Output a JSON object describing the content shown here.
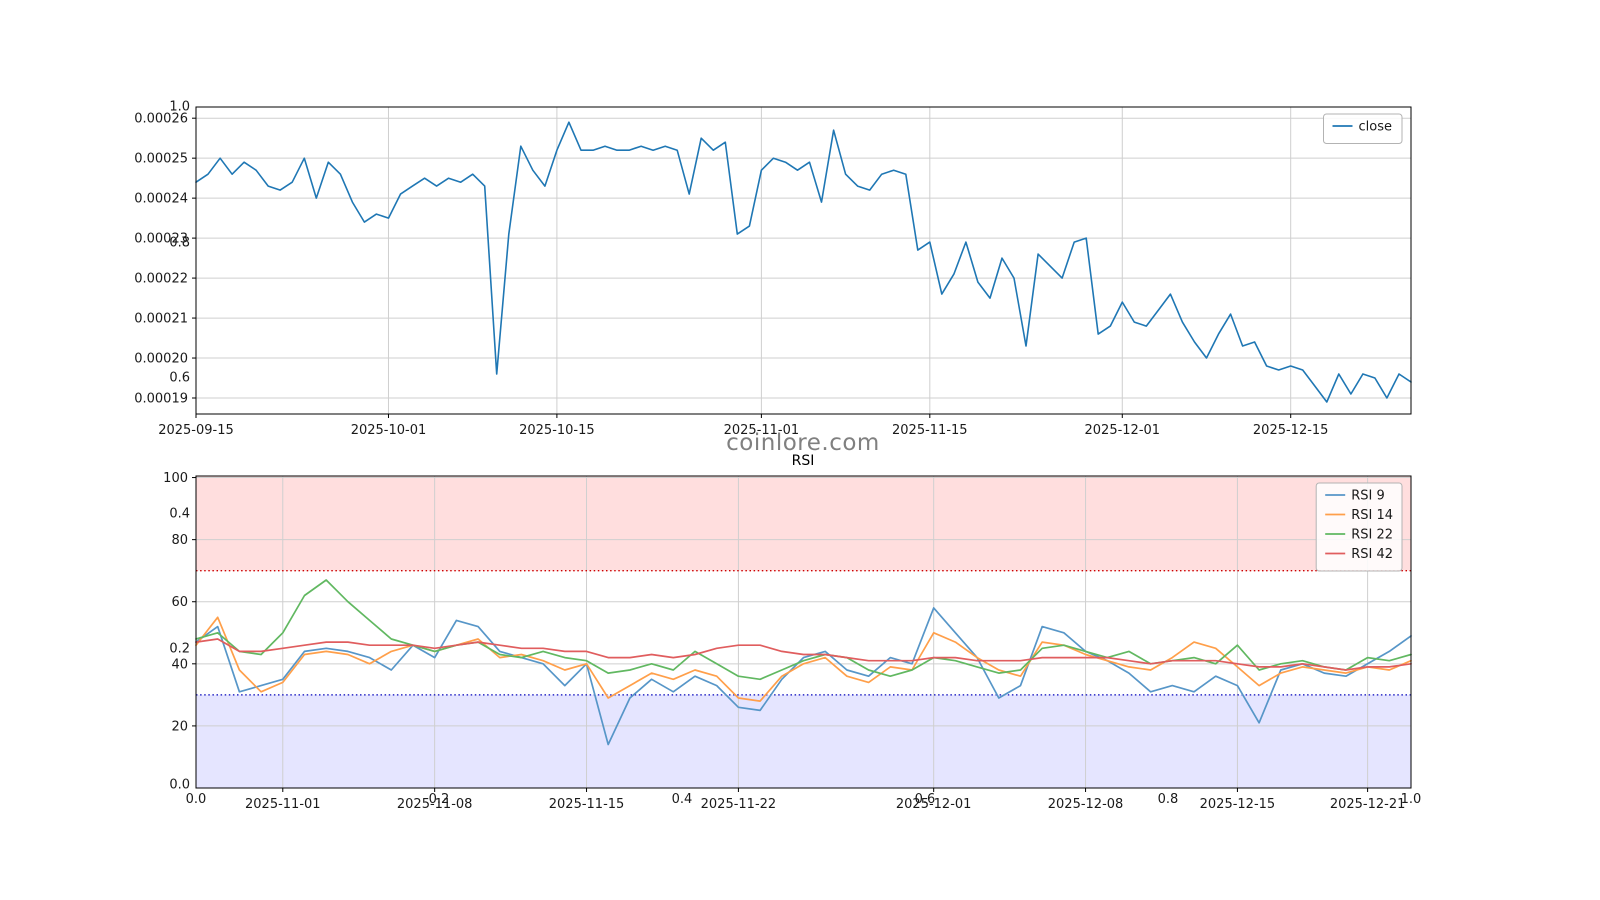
{
  "watermark": "coinlore.com",
  "overlay_axis": {
    "y_labels": [
      "1.0",
      "0.8",
      "0.6",
      "0.4",
      "0.2",
      "0.0"
    ],
    "x_labels": [
      "0.0",
      "0.2",
      "0.4",
      "0.6",
      "0.8",
      "1.0"
    ]
  },
  "chart_data": [
    {
      "type": "line",
      "name": "price-close-chart",
      "title": "",
      "legend_position": "upper right",
      "grid": true,
      "start_date": "2025-09-15",
      "x_tick_labels": [
        "2025-09-15",
        "2025-10-01",
        "2025-10-15",
        "2025-11-01",
        "2025-11-15",
        "2025-12-01",
        "2025-12-15"
      ],
      "y_tick_values": [
        0.00019,
        0.0002,
        0.00021,
        0.00022,
        0.00023,
        0.00024,
        0.00025,
        0.00026
      ],
      "y_tick_labels": [
        "0.00019",
        "0.00020",
        "0.00021",
        "0.00022",
        "0.00023",
        "0.00024",
        "0.00025",
        "0.00026"
      ],
      "ylim": [
        0.000186,
        0.0002628
      ],
      "series": [
        {
          "name": "close",
          "color": "#1f77b4",
          "width": 1.6,
          "values": [
            0.000244,
            0.000246,
            0.00025,
            0.000246,
            0.000249,
            0.000247,
            0.000243,
            0.000242,
            0.000244,
            0.00025,
            0.00024,
            0.000249,
            0.000246,
            0.000239,
            0.000234,
            0.000236,
            0.000235,
            0.000241,
            0.000243,
            0.000245,
            0.000243,
            0.000245,
            0.000244,
            0.000246,
            0.000243,
            0.000196,
            0.000231,
            0.000253,
            0.000247,
            0.000243,
            0.000252,
            0.000259,
            0.000252,
            0.000252,
            0.000253,
            0.000252,
            0.000252,
            0.000253,
            0.000252,
            0.000253,
            0.000252,
            0.000241,
            0.000255,
            0.000252,
            0.000254,
            0.000231,
            0.000233,
            0.000247,
            0.00025,
            0.000249,
            0.000247,
            0.000249,
            0.000239,
            0.000257,
            0.000246,
            0.000243,
            0.000242,
            0.000246,
            0.000247,
            0.000246,
            0.000227,
            0.000229,
            0.000216,
            0.000221,
            0.000229,
            0.000219,
            0.000215,
            0.000225,
            0.00022,
            0.000203,
            0.000226,
            0.000223,
            0.00022,
            0.000229,
            0.00023,
            0.000206,
            0.000208,
            0.000214,
            0.000209,
            0.000208,
            0.000212,
            0.000216,
            0.000209,
            0.000204,
            0.0002,
            0.000206,
            0.000211,
            0.000203,
            0.000204,
            0.000198,
            0.000197,
            0.000198,
            0.000197,
            0.000193,
            0.000189,
            0.000196,
            0.000191,
            0.000196,
            0.000195,
            0.00019,
            0.000196,
            0.000194
          ]
        }
      ]
    },
    {
      "type": "line",
      "name": "rsi-chart",
      "title": "RSI",
      "legend_position": "upper right",
      "grid": true,
      "start_date": "2025-10-28",
      "x_tick_labels": [
        "2025-11-01",
        "2025-11-08",
        "2025-11-15",
        "2025-11-22",
        "2025-12-01",
        "2025-12-08",
        "2025-12-15",
        "2025-12-21"
      ],
      "y_tick_values": [
        20,
        40,
        60,
        80,
        100
      ],
      "y_tick_labels": [
        "20",
        "40",
        "60",
        "80",
        "100"
      ],
      "ylim": [
        0,
        100.5
      ],
      "bands": [
        {
          "name": "overbought-zone",
          "from": 70,
          "to": 100.5,
          "color": "rgba(255,0,0,0.13)"
        },
        {
          "name": "oversold-zone",
          "from": 0,
          "to": 30,
          "color": "rgba(0,0,255,0.10)"
        }
      ],
      "hlines": [
        {
          "name": "overbought-threshold",
          "value": 70,
          "color": "#cc0000"
        },
        {
          "name": "oversold-threshold",
          "value": 30,
          "color": "#0000bb"
        }
      ],
      "series": [
        {
          "name": "RSI 9",
          "color": "#5796c8",
          "width": 1.7,
          "values": [
            47,
            52,
            31,
            33,
            35,
            44,
            45,
            44,
            42,
            38,
            46,
            42,
            54,
            52,
            44,
            42,
            40,
            33,
            40,
            14,
            29,
            35,
            31,
            36,
            33,
            26,
            25,
            35,
            42,
            44,
            38,
            36,
            42,
            40,
            58,
            50,
            42,
            29,
            33,
            52,
            50,
            44,
            41,
            37,
            31,
            33,
            31,
            36,
            33,
            21,
            38,
            40,
            37,
            36,
            40,
            44,
            49
          ]
        },
        {
          "name": "RSI 14",
          "color": "#ff9f4a",
          "width": 1.7,
          "values": [
            46,
            55,
            38,
            31,
            34,
            43,
            44,
            43,
            40,
            44,
            46,
            44,
            46,
            48,
            42,
            43,
            41,
            38,
            40,
            29,
            33,
            37,
            35,
            38,
            36,
            29,
            28,
            36,
            40,
            42,
            36,
            34,
            39,
            38,
            50,
            47,
            42,
            38,
            36,
            47,
            46,
            43,
            41,
            39,
            38,
            42,
            47,
            45,
            39,
            33,
            37,
            39,
            38,
            37,
            39,
            38,
            41
          ]
        },
        {
          "name": "RSI 22",
          "color": "#61b861",
          "width": 1.7,
          "values": [
            48,
            50,
            44,
            43,
            50,
            62,
            67,
            60,
            54,
            48,
            46,
            44,
            46,
            47,
            43,
            42,
            44,
            42,
            41,
            37,
            38,
            40,
            38,
            44,
            40,
            36,
            35,
            38,
            41,
            43,
            42,
            38,
            36,
            38,
            42,
            41,
            39,
            37,
            38,
            45,
            46,
            44,
            42,
            44,
            40,
            41,
            42,
            40,
            46,
            38,
            40,
            41,
            39,
            38,
            42,
            41,
            43
          ]
        },
        {
          "name": "RSI 42",
          "color": "#e05d5e",
          "width": 1.7,
          "values": [
            47,
            48,
            44,
            44,
            45,
            46,
            47,
            47,
            46,
            46,
            46,
            45,
            46,
            47,
            46,
            45,
            45,
            44,
            44,
            42,
            42,
            43,
            42,
            43,
            45,
            46,
            46,
            44,
            43,
            43,
            42,
            41,
            41,
            41,
            42,
            42,
            41,
            41,
            41,
            42,
            42,
            42,
            42,
            41,
            40,
            41,
            41,
            41,
            40,
            39,
            39,
            40,
            39,
            38,
            39,
            39,
            40
          ]
        }
      ]
    }
  ]
}
